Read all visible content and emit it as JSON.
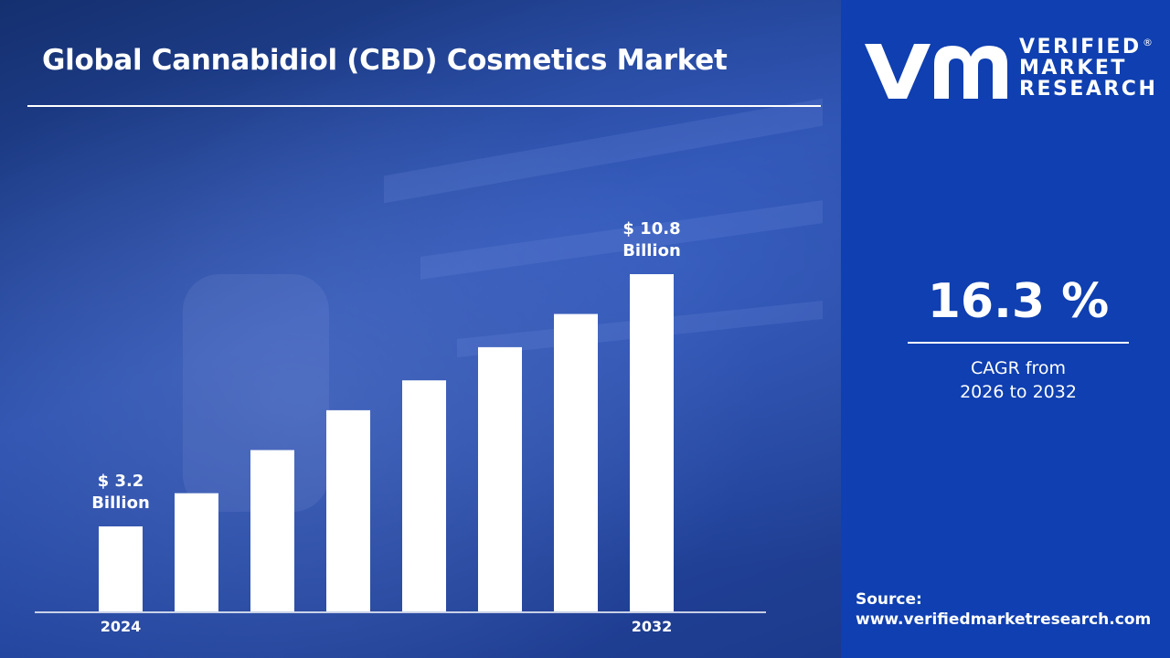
{
  "header": {
    "title": "Global Cannabidiol (CBD) Cosmetics Market"
  },
  "brand": {
    "logo_lines": [
      "VERIFIED",
      "MARKET",
      "RESEARCH"
    ],
    "registered": "®"
  },
  "colors": {
    "panel": "#0f3fb0",
    "bars": "#ffffff",
    "text": "#ffffff"
  },
  "cagr": {
    "value": "16.3 %",
    "label_line1": "CAGR from",
    "label_line2": "2026 to 2032"
  },
  "source": {
    "label": "Source:",
    "url": "www.verifiedmarketresearch.com"
  },
  "chart_data": {
    "type": "bar",
    "title": "Global Cannabidiol (CBD) Cosmetics Market",
    "categories": [
      "2024",
      "",
      "",
      "",
      "",
      "",
      "",
      "2032"
    ],
    "values": [
      3.2,
      4.2,
      5.5,
      6.7,
      7.6,
      8.6,
      9.6,
      10.8
    ],
    "unit": "USD Billion",
    "data_labels": [
      {
        "index": 0,
        "line1": "$ 3.2",
        "line2": "Billion"
      },
      {
        "index": 7,
        "line1": "$ 10.8",
        "line2": "Billion"
      }
    ],
    "grid": false,
    "legend": "none"
  }
}
